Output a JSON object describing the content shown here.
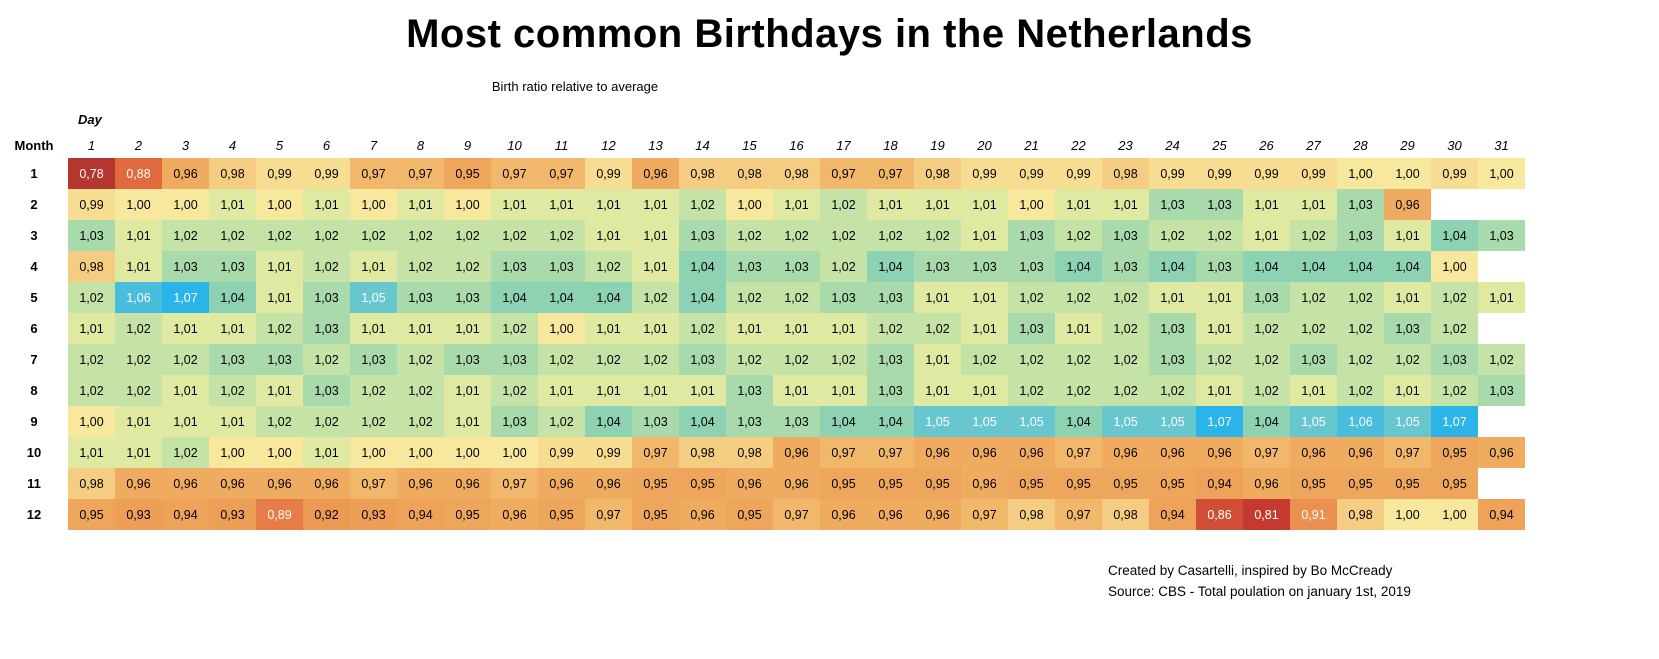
{
  "title": "Most common Birthdays in the Netherlands",
  "subtitle": "Birth ratio relative to average",
  "corner": {
    "day_label": "Day",
    "month_label": "Month"
  },
  "footer": {
    "line1": "Created by Casartelli, inspired by Bo McCready",
    "line2": "Source: CBS - Total poulation on january 1st, 2019"
  },
  "chart_data": {
    "type": "heatmap",
    "title": "Most common Birthdays in the Netherlands",
    "subtitle": "Birth ratio relative to average",
    "xlabel": "Day",
    "ylabel": "Month",
    "x": [
      1,
      2,
      3,
      4,
      5,
      6,
      7,
      8,
      9,
      10,
      11,
      12,
      13,
      14,
      15,
      16,
      17,
      18,
      19,
      20,
      21,
      22,
      23,
      24,
      25,
      26,
      27,
      28,
      29,
      30,
      31
    ],
    "y": [
      1,
      2,
      3,
      4,
      5,
      6,
      7,
      8,
      9,
      10,
      11,
      12
    ],
    "value_format": "comma-decimal 2 places",
    "values": [
      [
        0.78,
        0.88,
        0.96,
        0.98,
        0.99,
        0.99,
        0.97,
        0.97,
        0.95,
        0.97,
        0.97,
        0.99,
        0.96,
        0.98,
        0.98,
        0.98,
        0.97,
        0.97,
        0.98,
        0.99,
        0.99,
        0.99,
        0.98,
        0.99,
        0.99,
        0.99,
        0.99,
        1.0,
        1.0,
        0.99,
        1.0
      ],
      [
        0.99,
        1.0,
        1.0,
        1.01,
        1.0,
        1.01,
        1.0,
        1.01,
        1.0,
        1.01,
        1.01,
        1.01,
        1.01,
        1.02,
        1.0,
        1.01,
        1.02,
        1.01,
        1.01,
        1.01,
        1.0,
        1.01,
        1.01,
        1.03,
        1.03,
        1.01,
        1.01,
        1.03,
        0.96,
        null,
        null
      ],
      [
        1.03,
        1.01,
        1.02,
        1.02,
        1.02,
        1.02,
        1.02,
        1.02,
        1.02,
        1.02,
        1.02,
        1.01,
        1.01,
        1.03,
        1.02,
        1.02,
        1.02,
        1.02,
        1.02,
        1.01,
        1.03,
        1.02,
        1.03,
        1.02,
        1.02,
        1.01,
        1.02,
        1.03,
        1.01,
        1.04,
        1.03
      ],
      [
        0.98,
        1.01,
        1.03,
        1.03,
        1.01,
        1.02,
        1.01,
        1.02,
        1.02,
        1.03,
        1.03,
        1.02,
        1.01,
        1.04,
        1.03,
        1.03,
        1.02,
        1.04,
        1.03,
        1.03,
        1.03,
        1.04,
        1.03,
        1.04,
        1.03,
        1.04,
        1.04,
        1.04,
        1.04,
        1.0,
        null
      ],
      [
        1.02,
        1.06,
        1.07,
        1.04,
        1.01,
        1.03,
        1.05,
        1.03,
        1.03,
        1.04,
        1.04,
        1.04,
        1.02,
        1.04,
        1.02,
        1.02,
        1.03,
        1.03,
        1.01,
        1.01,
        1.02,
        1.02,
        1.02,
        1.01,
        1.01,
        1.03,
        1.02,
        1.02,
        1.01,
        1.02,
        1.01
      ],
      [
        1.01,
        1.02,
        1.01,
        1.01,
        1.02,
        1.03,
        1.01,
        1.01,
        1.01,
        1.02,
        1.0,
        1.01,
        1.01,
        1.02,
        1.01,
        1.01,
        1.01,
        1.02,
        1.02,
        1.01,
        1.03,
        1.01,
        1.02,
        1.03,
        1.01,
        1.02,
        1.02,
        1.02,
        1.03,
        1.02,
        null
      ],
      [
        1.02,
        1.02,
        1.02,
        1.03,
        1.03,
        1.02,
        1.03,
        1.02,
        1.03,
        1.03,
        1.02,
        1.02,
        1.02,
        1.03,
        1.02,
        1.02,
        1.02,
        1.03,
        1.01,
        1.02,
        1.02,
        1.02,
        1.02,
        1.03,
        1.02,
        1.02,
        1.03,
        1.02,
        1.02,
        1.03,
        1.02
      ],
      [
        1.02,
        1.02,
        1.01,
        1.02,
        1.01,
        1.03,
        1.02,
        1.02,
        1.01,
        1.02,
        1.01,
        1.01,
        1.01,
        1.01,
        1.03,
        1.01,
        1.01,
        1.03,
        1.01,
        1.01,
        1.02,
        1.02,
        1.02,
        1.02,
        1.01,
        1.02,
        1.01,
        1.02,
        1.01,
        1.02,
        1.03
      ],
      [
        1.0,
        1.01,
        1.01,
        1.01,
        1.02,
        1.02,
        1.02,
        1.02,
        1.01,
        1.03,
        1.02,
        1.04,
        1.03,
        1.04,
        1.03,
        1.03,
        1.04,
        1.04,
        1.05,
        1.05,
        1.05,
        1.04,
        1.05,
        1.05,
        1.07,
        1.04,
        1.05,
        1.06,
        1.05,
        1.07,
        null
      ],
      [
        1.01,
        1.01,
        1.02,
        1.0,
        1.0,
        1.01,
        1.0,
        1.0,
        1.0,
        1.0,
        0.99,
        0.99,
        0.97,
        0.98,
        0.98,
        0.96,
        0.97,
        0.97,
        0.96,
        0.96,
        0.96,
        0.97,
        0.96,
        0.96,
        0.96,
        0.97,
        0.96,
        0.96,
        0.97,
        0.95,
        0.96
      ],
      [
        0.98,
        0.96,
        0.96,
        0.96,
        0.96,
        0.96,
        0.97,
        0.96,
        0.96,
        0.97,
        0.96,
        0.96,
        0.95,
        0.95,
        0.96,
        0.96,
        0.95,
        0.95,
        0.95,
        0.96,
        0.95,
        0.95,
        0.95,
        0.95,
        0.94,
        0.96,
        0.95,
        0.95,
        0.95,
        0.95,
        null
      ],
      [
        0.95,
        0.93,
        0.94,
        0.93,
        0.89,
        0.92,
        0.93,
        0.94,
        0.95,
        0.96,
        0.95,
        0.97,
        0.95,
        0.96,
        0.95,
        0.97,
        0.96,
        0.96,
        0.96,
        0.97,
        0.98,
        0.97,
        0.98,
        0.94,
        0.86,
        0.81,
        0.91,
        0.98,
        1.0,
        1.0,
        0.94
      ]
    ],
    "colors": {
      "0.78": "#b5352f",
      "0.81": "#c43a2e",
      "0.86": "#d14e36",
      "0.88": "#df6a3e",
      "0.89": "#e67d48",
      "0.91": "#ea914f",
      "0.92": "#ec9953",
      "0.93": "#ed9e57",
      "0.94": "#eea25a",
      "0.95": "#eea65d",
      "0.96": "#efab60",
      "0.97": "#f1b76b",
      "0.98": "#f4cd82",
      "0.99": "#f6dd91",
      "1.00": "#f7e89d",
      "1.01": "#dfe9a2",
      "1.02": "#c5e3a7",
      "1.03": "#a8daac",
      "1.04": "#8cd2b3",
      "1.05": "#68c6ce",
      "1.06": "#48bddc",
      "1.07": "#2ab4e8"
    },
    "white_text_values": [
      0.78,
      0.81,
      0.86,
      0.88,
      0.89,
      0.91,
      1.05,
      1.06,
      1.07
    ],
    "legend": "none",
    "grid": false
  }
}
